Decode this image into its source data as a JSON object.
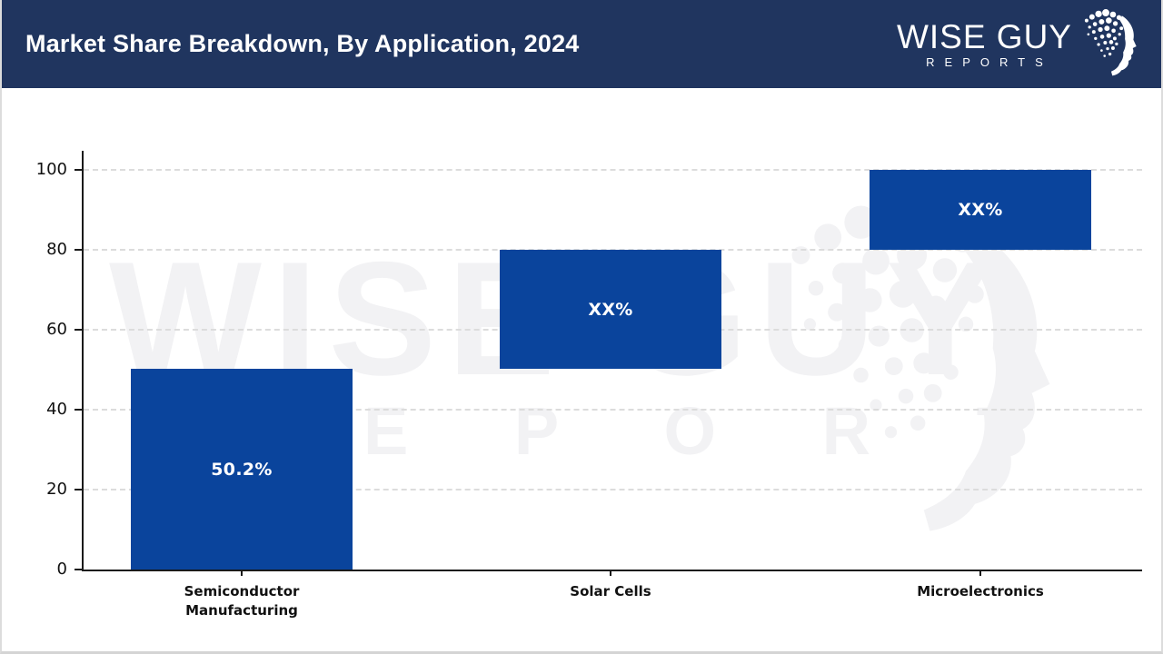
{
  "header": {
    "title": "Market Share Breakdown, By Application, 2024",
    "logo": {
      "line1": "WISE GUY",
      "line2": "REPORTS"
    },
    "bg_color": "#20355f"
  },
  "watermark": {
    "line1": "WISE GUY",
    "line2": "R E P O R T S"
  },
  "chart_data": {
    "type": "bar",
    "subtype": "waterfall",
    "title": "Market Share Breakdown, By Application, 2024",
    "categories": [
      "Semiconductor\nManufacturing",
      "Solar Cells",
      "Microelectronics"
    ],
    "bars": [
      {
        "category": "Semiconductor\nManufacturing",
        "start": 0,
        "end": 50.2,
        "label": "50.2%"
      },
      {
        "category": "Solar Cells",
        "start": 50.2,
        "end": 80,
        "label": "XX%"
      },
      {
        "category": "Microelectronics",
        "start": 80,
        "end": 100,
        "label": "XX%"
      }
    ],
    "ylim": [
      0,
      100
    ],
    "yticks": [
      0,
      20,
      40,
      60,
      80,
      100
    ],
    "xlabel": "",
    "ylabel": "",
    "grid": "horizontal-dashed",
    "legend": "none",
    "bar_color": "#0a449c",
    "bar_label_color": "#ffffff"
  }
}
